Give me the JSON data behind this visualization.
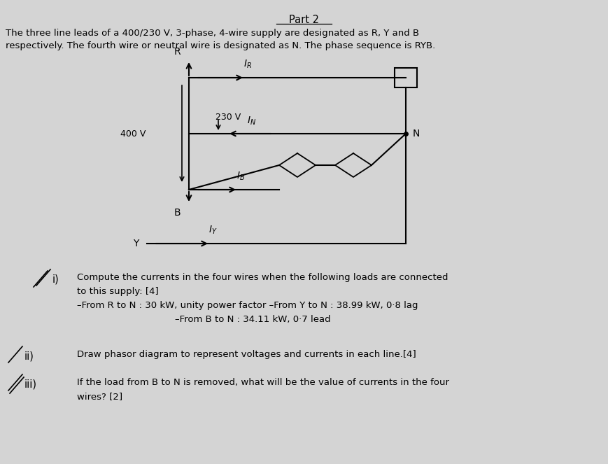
{
  "background_color": "#d4d4d4",
  "title": "Part 2",
  "intro_text_line1": "The three line leads of a 400/230 V, 3-phase, 4-wire supply are designated as R, Y and B",
  "intro_text_line2": "respectively. The fourth wire or neutral wire is designated as N. The phase sequence is RYB.",
  "part_i_label": "i)",
  "part_i_text1": "Compute the currents in the four wires when the following loads are connected",
  "part_i_text2": "to this supply: [4]",
  "part_i_text3": "–From R to N : 30 kW, unity power factor –From Y to N : 38.99 kW, 0·8 lag",
  "part_i_text4": "–From B to N : 34.11 kW, 0·7 lead",
  "part_ii_label": "ii)",
  "part_ii_text": "Draw phasor diagram to represent voltages and currents in each line.[4]",
  "part_iii_label": "iii)",
  "part_iii_text1": "If the load from B to N is removed, what will be the value of currents in the four",
  "part_iii_text2": "wires? [2]"
}
